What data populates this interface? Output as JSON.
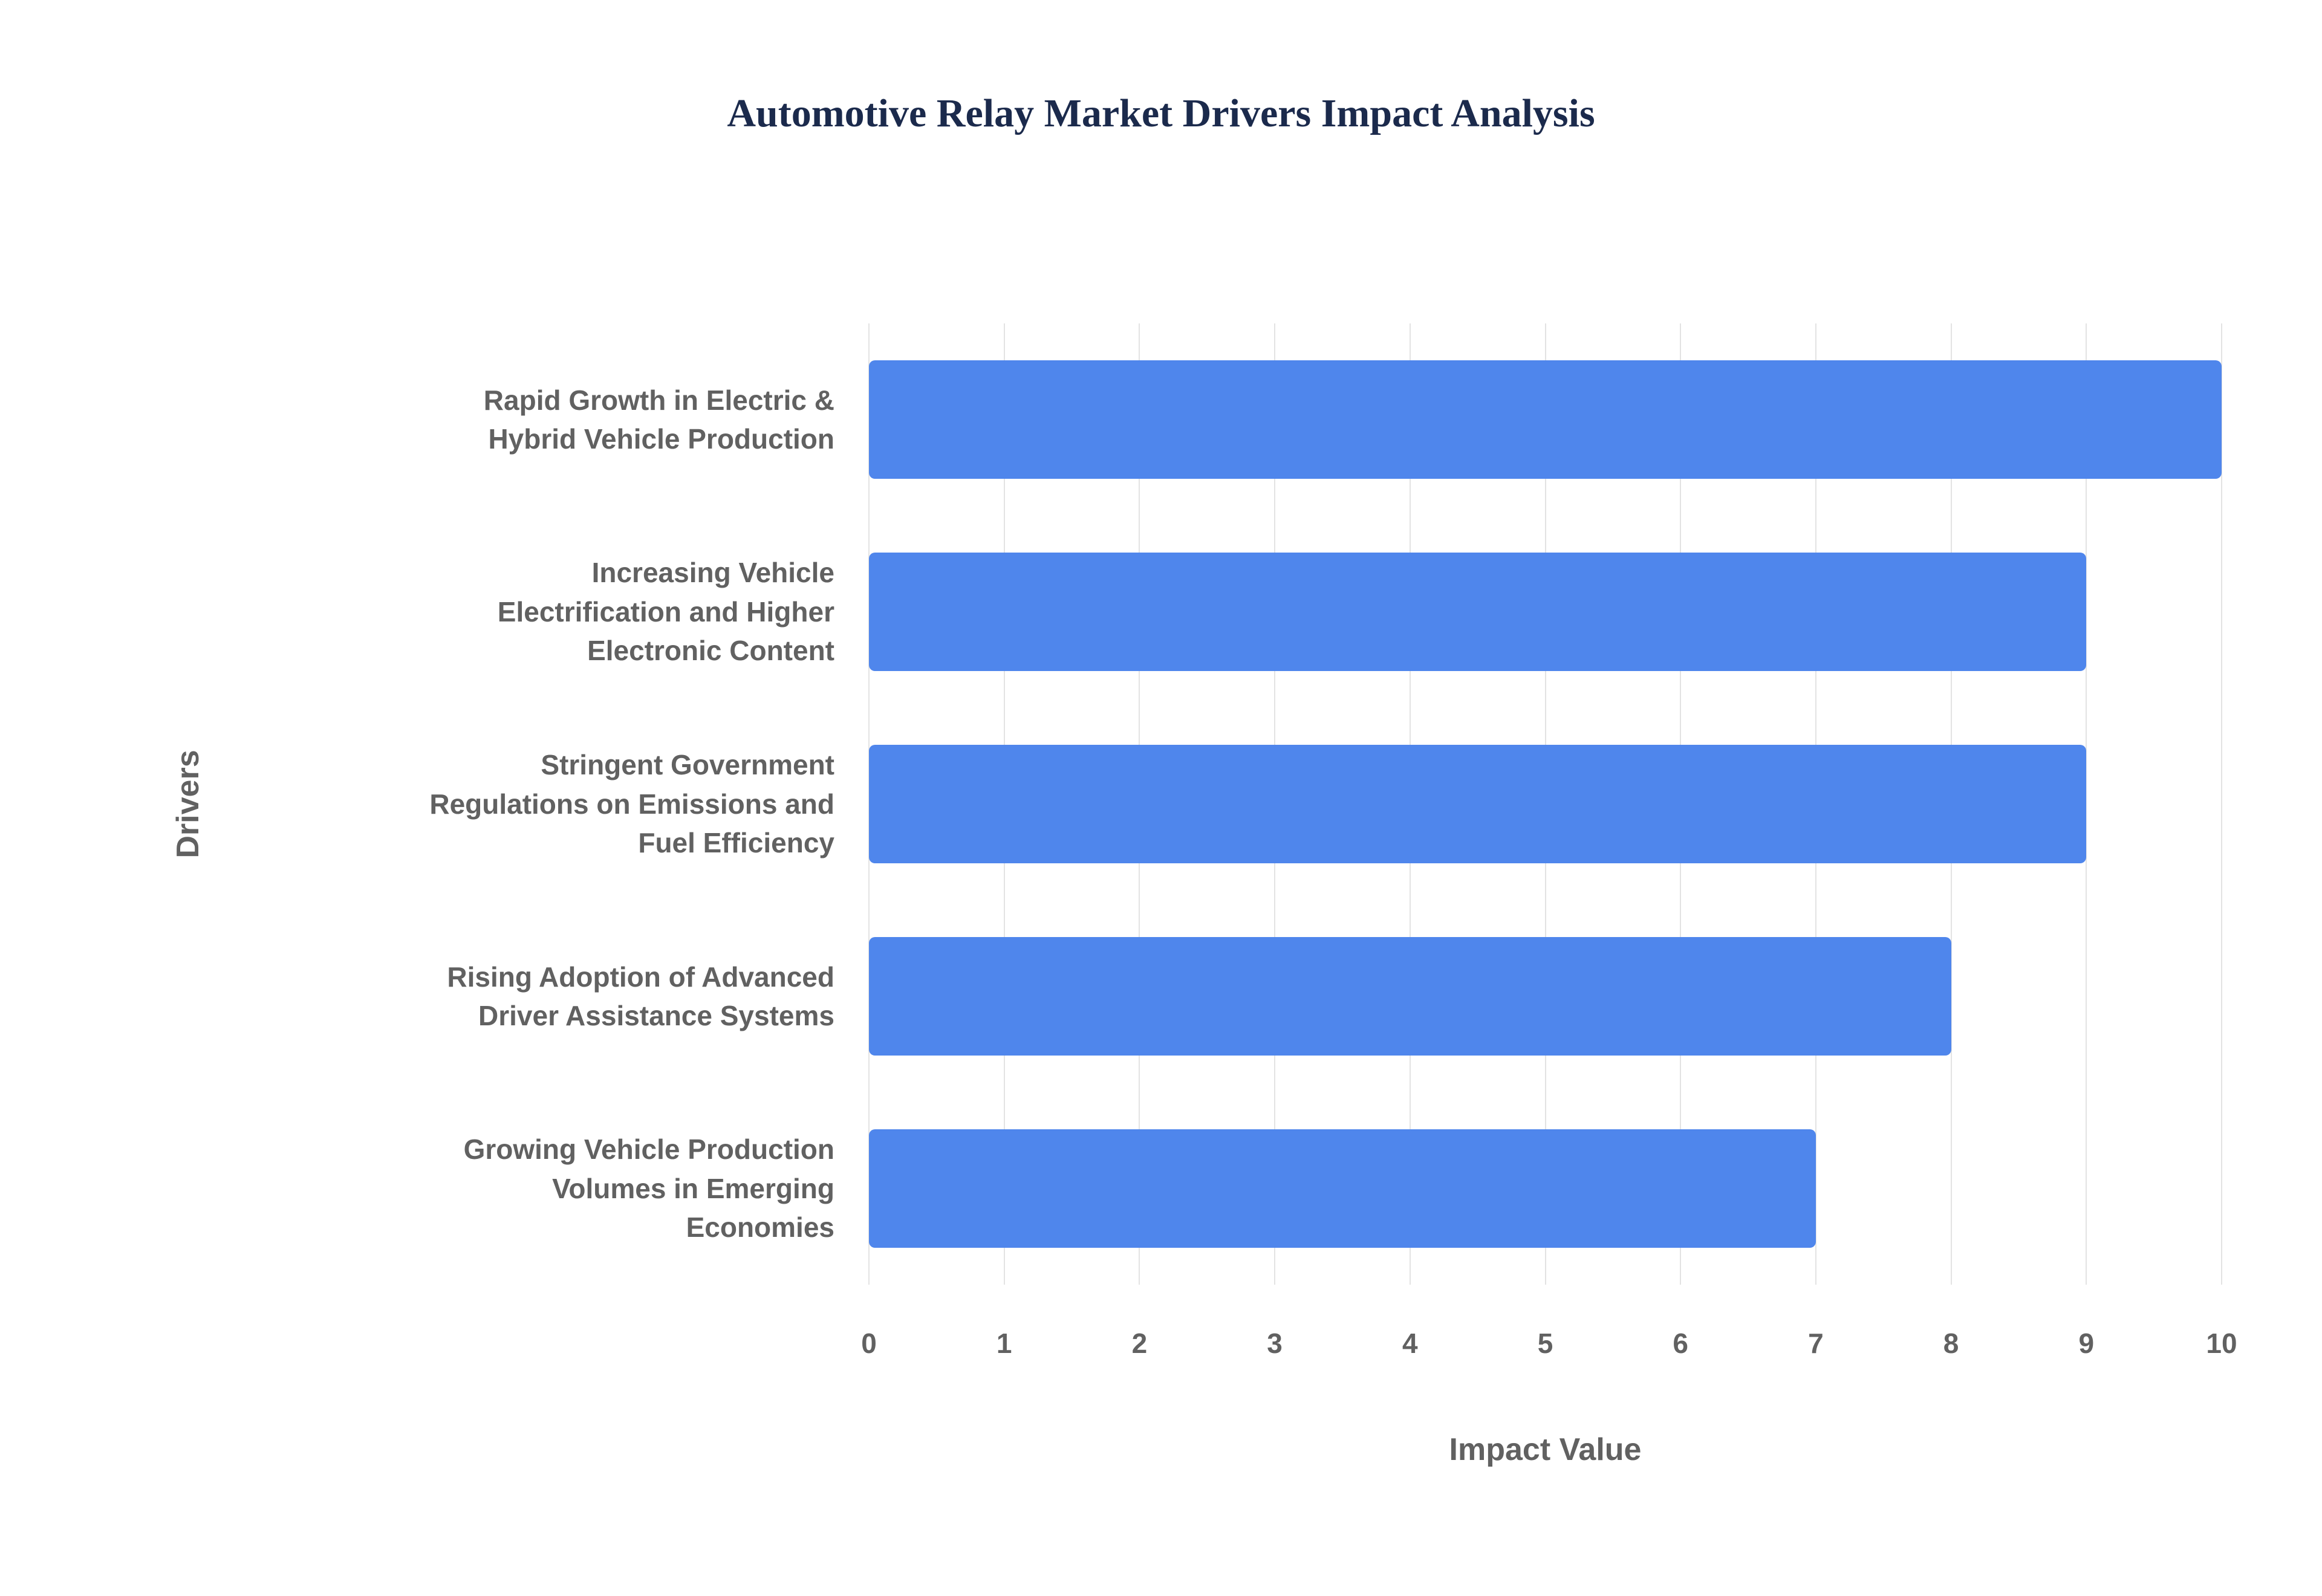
{
  "chart_data": {
    "type": "bar",
    "orientation": "horizontal",
    "title": "Automotive Relay Market Drivers Impact Analysis",
    "categories": [
      "Rapid Growth in Electric & Hybrid Vehicle Production",
      "Increasing Vehicle Electrification and Higher Electronic Content",
      "Stringent Government Regulations on Emissions and Fuel Efficiency",
      "Rising Adoption of Advanced Driver Assistance Systems",
      "Growing Vehicle Production Volumes in Emerging Economies"
    ],
    "values": [
      10,
      9,
      9,
      8,
      7
    ],
    "xlabel": "Impact Value",
    "ylabel": "Drivers",
    "xlim": [
      0,
      10
    ],
    "xticks": [
      0,
      1,
      2,
      3,
      4,
      5,
      6,
      7,
      8,
      9,
      10
    ],
    "grid": true,
    "legend": "none",
    "colors": {
      "bar": "#4f86ec",
      "title": "#1b2a4c",
      "axis_text": "#616161",
      "gridline": "#e3e3e3",
      "background": "#ffffff"
    }
  }
}
